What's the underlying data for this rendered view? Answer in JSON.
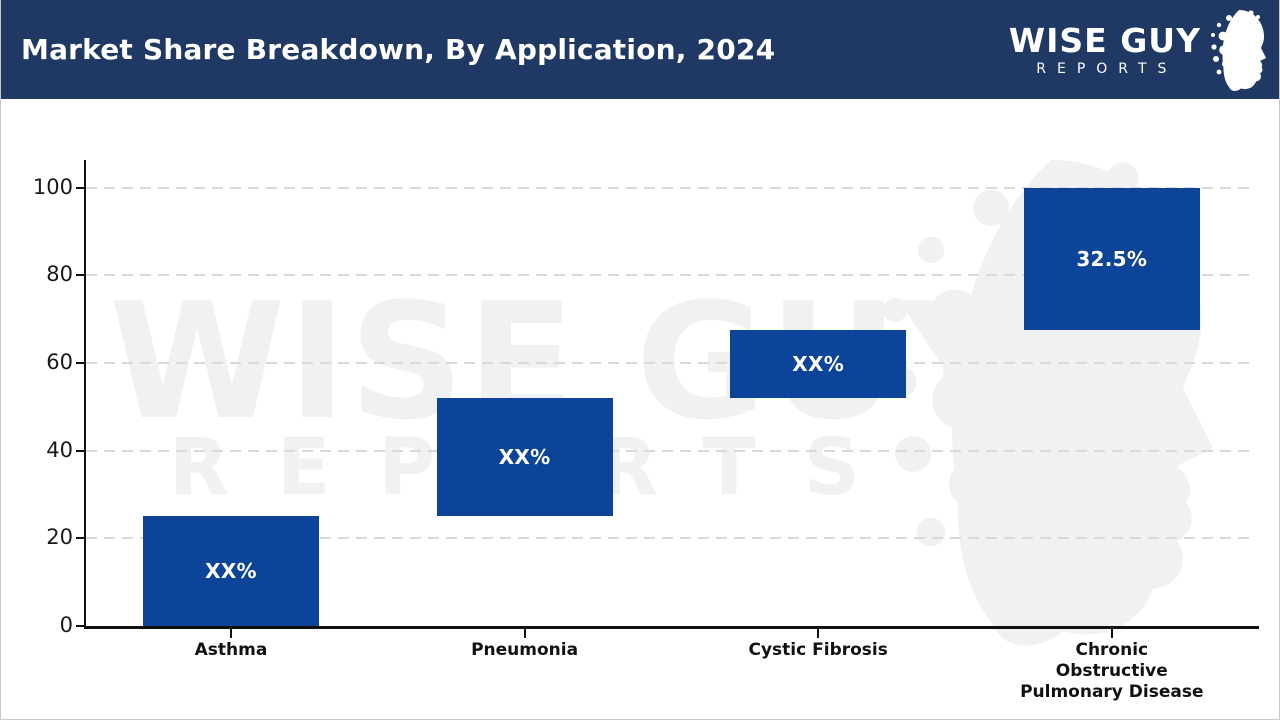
{
  "header": {
    "title": "Market Share Breakdown, By Application, 2024",
    "brand": {
      "primary": "WISE GUY",
      "secondary": "REPORTS",
      "icon": "dotted-face-profile-icon"
    }
  },
  "watermark": {
    "primary": "WISE GUY",
    "secondary": "REPORTS",
    "icon": "dotted-face-profile-watermark-icon"
  },
  "colors": {
    "header_background": "#1f3864",
    "bar": "#0b4498",
    "bar_label": "#ffffff",
    "grid": "#d9d9d9",
    "axis": "#111111",
    "watermark": "#f1f1f3"
  },
  "chart_data": {
    "type": "bar",
    "variant": "floating-waterfall",
    "title": "Market Share Breakdown, By Application, 2024",
    "categories": [
      "Asthma",
      "Pneumonia",
      "Cystic Fibrosis",
      "Chronic Obstructive Pulmonary Disease"
    ],
    "category_display_lines": [
      [
        "Asthma"
      ],
      [
        "Pneumonia"
      ],
      [
        "Cystic Fibrosis"
      ],
      [
        "Chronic",
        "Obstructive",
        "Pulmonary Disease"
      ]
    ],
    "segments": [
      {
        "category": "Asthma",
        "start": 0,
        "end": 25,
        "label": "XX%"
      },
      {
        "category": "Pneumonia",
        "start": 25,
        "end": 52,
        "label": "XX%"
      },
      {
        "category": "Cystic Fibrosis",
        "start": 52,
        "end": 67.5,
        "label": "XX%"
      },
      {
        "category": "Chronic Obstructive Pulmonary Disease",
        "start": 67.5,
        "end": 100,
        "label": "32.5%"
      }
    ],
    "yticks": [
      0,
      20,
      40,
      60,
      80,
      100
    ],
    "ylim": [
      0,
      100
    ],
    "xlabel": "",
    "ylabel": "",
    "grid": "horizontal-dashed",
    "legend": "none"
  }
}
